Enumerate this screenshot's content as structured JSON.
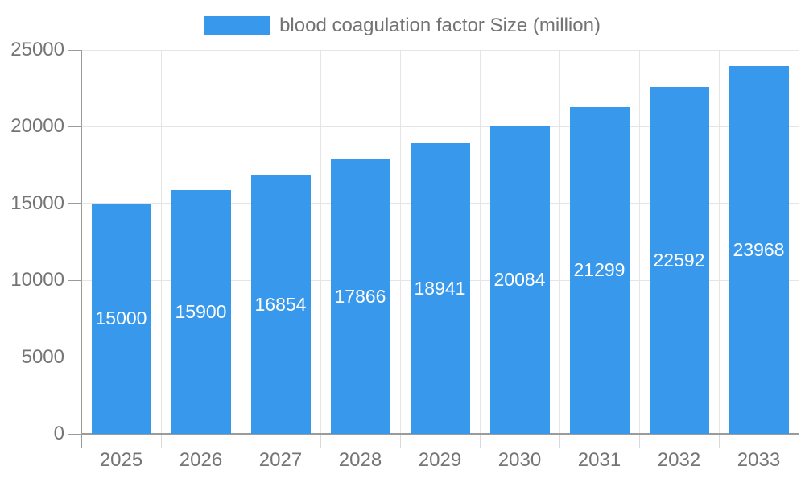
{
  "chart_data": {
    "type": "bar",
    "legend": "blood coagulation factor Size (million)",
    "categories": [
      "2025",
      "2026",
      "2027",
      "2028",
      "2029",
      "2030",
      "2031",
      "2032",
      "2033"
    ],
    "series": [
      {
        "name": "blood coagulation factor Size (million)",
        "values": [
          15000,
          15900,
          16854,
          17866,
          18941,
          20084,
          21299,
          22592,
          23968
        ]
      }
    ],
    "xlabel": "",
    "ylabel": "",
    "ylim": [
      0,
      25000
    ],
    "yticks": [
      0,
      5000,
      10000,
      15000,
      20000,
      25000
    ],
    "grid": "on",
    "legend_position": "top-center",
    "bar_color": "#3899EC",
    "value_label_color": "#ffffff",
    "axis_text_color": "#757575"
  }
}
